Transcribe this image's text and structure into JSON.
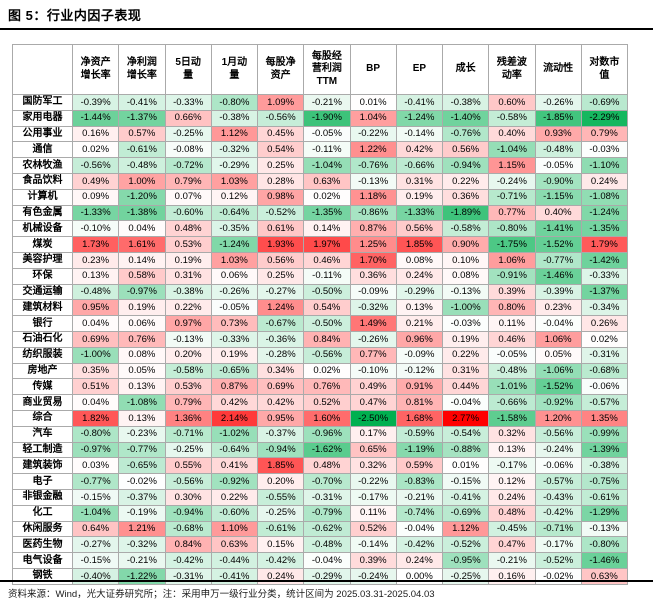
{
  "title": "图 5：行业内因子表现",
  "footer": {
    "text": "资料来源：Wind，光大证券研究所；注：采用申万一级行业分类，统计区间为 2025.03.31-2025.04.03"
  },
  "chart_data": {
    "type": "heatmap",
    "title": "行业内因子表现",
    "unit": "%",
    "legend_position": "none",
    "color_scale": {
      "min": -2.5,
      "mid": 0,
      "max": 2.77,
      "min_color": "#00B050",
      "mid_color": "#FFFFFF",
      "max_color": "#FF0000"
    },
    "columns": [
      "净资产\n增长率",
      "净利润\n增长率",
      "5日动\n量",
      "1月动\n量",
      "每股净\n资产",
      "每股经\n营利润\nTTM",
      "BP",
      "EP",
      "成长",
      "残差波\n动率",
      "流动性",
      "对数市\n值"
    ],
    "rows": [
      {
        "name": "国防军工",
        "values": [
          -0.39,
          -0.41,
          -0.33,
          -0.8,
          1.09,
          -0.21,
          0.01,
          -0.41,
          -0.38,
          0.6,
          -0.26,
          -0.69
        ]
      },
      {
        "name": "家用电器",
        "values": [
          -1.44,
          -1.37,
          0.66,
          -0.38,
          -0.56,
          -1.9,
          1.04,
          -1.24,
          -1.4,
          -0.58,
          -1.85,
          -2.29
        ]
      },
      {
        "name": "公用事业",
        "values": [
          0.16,
          0.57,
          -0.25,
          1.12,
          0.45,
          -0.05,
          -0.22,
          -0.14,
          -0.76,
          0.4,
          0.93,
          0.79
        ]
      },
      {
        "name": "通信",
        "values": [
          0.02,
          -0.61,
          -0.08,
          -0.32,
          0.54,
          -0.11,
          1.22,
          0.42,
          0.56,
          -1.04,
          -0.48,
          -0.03
        ]
      },
      {
        "name": "农林牧渔",
        "values": [
          -0.56,
          -0.48,
          -0.72,
          -0.29,
          0.25,
          -1.04,
          -0.76,
          -0.66,
          -0.94,
          1.15,
          -0.05,
          -1.1
        ]
      },
      {
        "name": "食品饮料",
        "values": [
          0.49,
          1.0,
          0.79,
          1.03,
          0.28,
          0.63,
          -0.13,
          0.31,
          0.22,
          -0.24,
          -0.9,
          0.24
        ]
      },
      {
        "name": "计算机",
        "values": [
          0.09,
          -1.2,
          0.07,
          0.12,
          0.98,
          0.02,
          1.18,
          0.19,
          0.36,
          -0.71,
          -1.15,
          -1.08
        ]
      },
      {
        "name": "有色金属",
        "values": [
          -1.33,
          -1.38,
          -0.6,
          -0.64,
          -0.52,
          -1.35,
          -0.86,
          -1.33,
          -1.89,
          0.77,
          0.4,
          -1.24
        ]
      },
      {
        "name": "机械设备",
        "values": [
          -0.1,
          0.04,
          0.48,
          -0.35,
          0.61,
          0.14,
          0.87,
          0.56,
          -0.58,
          -0.8,
          -1.41,
          -1.35
        ]
      },
      {
        "name": "煤炭",
        "values": [
          1.73,
          1.61,
          0.53,
          -1.24,
          1.93,
          1.97,
          1.25,
          1.85,
          0.9,
          -1.75,
          -1.52,
          1.79
        ]
      },
      {
        "name": "美容护理",
        "values": [
          0.23,
          0.14,
          0.19,
          1.03,
          0.56,
          0.46,
          1.7,
          0.08,
          0.1,
          1.06,
          -0.77,
          -1.42
        ]
      },
      {
        "name": "环保",
        "values": [
          0.13,
          0.58,
          0.31,
          0.06,
          0.25,
          -0.11,
          0.36,
          0.24,
          0.08,
          -0.91,
          -1.46,
          -0.33
        ]
      },
      {
        "name": "交通运输",
        "values": [
          -0.48,
          -0.97,
          -0.38,
          -0.26,
          -0.27,
          -0.5,
          -0.09,
          -0.29,
          -0.13,
          0.39,
          -0.39,
          -1.37
        ]
      },
      {
        "name": "建筑材料",
        "values": [
          0.95,
          0.19,
          0.22,
          -0.05,
          1.24,
          0.54,
          -0.32,
          0.13,
          -1.0,
          0.8,
          0.23,
          -0.34
        ]
      },
      {
        "name": "银行",
        "values": [
          0.04,
          0.06,
          0.97,
          0.73,
          -0.67,
          -0.5,
          1.49,
          0.21,
          -0.03,
          0.11,
          -0.04,
          0.26
        ]
      },
      {
        "name": "石油石化",
        "values": [
          0.69,
          0.76,
          -0.13,
          -0.33,
          -0.36,
          0.84,
          -0.26,
          0.96,
          0.19,
          0.46,
          1.06,
          0.02
        ]
      },
      {
        "name": "纺织服装",
        "values": [
          -1.0,
          0.08,
          0.2,
          0.19,
          -0.28,
          -0.56,
          0.77,
          -0.09,
          0.22,
          -0.05,
          0.05,
          -0.31
        ]
      },
      {
        "name": "房地产",
        "values": [
          0.35,
          0.05,
          -0.58,
          -0.65,
          0.34,
          0.02,
          -0.1,
          -0.12,
          0.31,
          -0.48,
          -1.06,
          -0.68
        ]
      },
      {
        "name": "传媒",
        "values": [
          0.51,
          0.13,
          0.53,
          0.87,
          0.69,
          0.76,
          0.49,
          0.91,
          0.44,
          -1.01,
          -1.52,
          -0.06
        ]
      },
      {
        "name": "商业贸易",
        "values": [
          0.04,
          -1.08,
          0.79,
          0.42,
          0.42,
          0.52,
          0.47,
          0.81,
          -0.04,
          -0.66,
          -0.92,
          -0.57
        ]
      },
      {
        "name": "综合",
        "values": [
          1.82,
          0.13,
          1.36,
          2.14,
          0.95,
          1.6,
          -2.5,
          1.68,
          2.77,
          -1.58,
          1.2,
          1.35
        ]
      },
      {
        "name": "汽车",
        "values": [
          -0.8,
          -0.23,
          -0.71,
          -1.02,
          -0.37,
          -0.96,
          0.17,
          -0.59,
          -0.54,
          0.32,
          -0.56,
          -0.99
        ]
      },
      {
        "name": "轻工制造",
        "values": [
          -0.97,
          -0.77,
          -0.25,
          -0.64,
          -0.94,
          -1.62,
          0.65,
          -1.19,
          -0.88,
          0.13,
          -0.24,
          -1.39
        ]
      },
      {
        "name": "建筑装饰",
        "values": [
          0.03,
          -0.65,
          0.55,
          0.41,
          1.85,
          0.48,
          0.32,
          0.59,
          0.01,
          -0.17,
          -0.06,
          -0.38
        ]
      },
      {
        "name": "电子",
        "values": [
          -0.77,
          -0.02,
          -0.56,
          -0.92,
          0.2,
          -0.7,
          -0.22,
          -0.83,
          -0.15,
          0.12,
          -0.57,
          -0.75
        ]
      },
      {
        "name": "非银金融",
        "values": [
          -0.15,
          -0.37,
          0.3,
          0.22,
          -0.55,
          -0.31,
          -0.17,
          -0.21,
          -0.41,
          0.24,
          -0.43,
          -0.61
        ]
      },
      {
        "name": "化工",
        "values": [
          -1.04,
          -0.19,
          -0.94,
          -0.6,
          -0.25,
          -0.79,
          0.11,
          -0.74,
          -0.69,
          0.48,
          -0.42,
          -1.29
        ]
      },
      {
        "name": "休闲服务",
        "values": [
          0.64,
          1.21,
          -0.68,
          1.1,
          -0.61,
          -0.62,
          0.52,
          -0.04,
          1.12,
          -0.45,
          -0.71,
          -0.13
        ]
      },
      {
        "name": "医药生物",
        "values": [
          -0.27,
          -0.32,
          0.84,
          0.63,
          0.15,
          -0.48,
          -0.14,
          -0.42,
          -0.52,
          0.47,
          -0.17,
          -0.8
        ]
      },
      {
        "name": "电气设备",
        "values": [
          -0.15,
          -0.21,
          -0.42,
          -0.44,
          -0.42,
          -0.04,
          0.39,
          0.24,
          -0.95,
          -0.21,
          -0.52,
          -1.46
        ]
      },
      {
        "name": "钢铁",
        "values": [
          -0.4,
          -1.22,
          -0.31,
          -0.41,
          0.24,
          -0.29,
          -0.24,
          0.0,
          -0.25,
          0.16,
          -0.02,
          0.63
        ]
      }
    ]
  }
}
